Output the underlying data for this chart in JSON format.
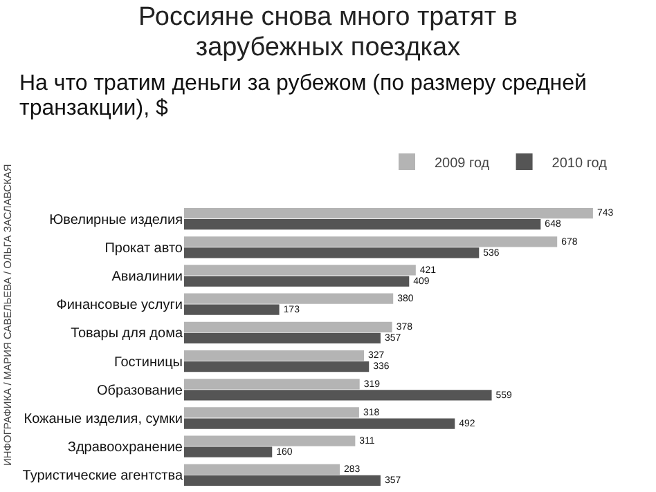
{
  "chart_data": {
    "type": "bar",
    "orientation": "horizontal",
    "title": "Россияне снова много тратят в зарубежных поездках",
    "subtitle": "На что тратим деньги за рубежом (по размеру средней транзакции), $",
    "categories": [
      "Ювелирные изделия",
      "Прокат авто",
      "Авиалинии",
      "Финансовые услуги",
      "Товары для дома",
      "Гостиницы",
      "Образование",
      "Кожаные изделия, сумки",
      "Здравоохранение",
      "Туристические агентства"
    ],
    "series": [
      {
        "name": "2009 год",
        "color": "#b4b4b4",
        "values": [
          743,
          678,
          421,
          380,
          378,
          327,
          319,
          318,
          311,
          283
        ]
      },
      {
        "name": "2010 год",
        "color": "#555555",
        "values": [
          648,
          536,
          409,
          173,
          357,
          336,
          559,
          492,
          160,
          357
        ]
      }
    ],
    "data_labels": true,
    "legend": "top right",
    "annotations": [
      "ИНФОГРАФИКА / МАРИЯ САВЕЛЬЕВА / ОЛЬГА ЗАСЛАВСКАЯ"
    ]
  }
}
